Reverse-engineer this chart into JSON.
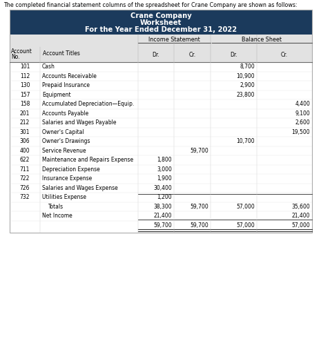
{
  "intro_text": "The completed financial statement columns of the spreadsheet for Crane Company are shown as follows:",
  "title_line1": "Crane Company",
  "title_line2": "Worksheet",
  "title_line3": "For the Year Ended December 31, 2022",
  "header_bg": "#1b3a5c",
  "header_text_color": "#ffffff",
  "subheader_bg": "#e2e2e2",
  "col_headers": [
    "Income Statement",
    "Balance Sheet"
  ],
  "rows": [
    {
      "no": "101",
      "title": "Cash",
      "is_dr": "",
      "is_cr": "",
      "bs_dr": "8,700",
      "bs_cr": ""
    },
    {
      "no": "112",
      "title": "Accounts Receivable",
      "is_dr": "",
      "is_cr": "",
      "bs_dr": "10,900",
      "bs_cr": ""
    },
    {
      "no": "130",
      "title": "Prepaid Insurance",
      "is_dr": "",
      "is_cr": "",
      "bs_dr": "2,900",
      "bs_cr": ""
    },
    {
      "no": "157",
      "title": "Equipment",
      "is_dr": "",
      "is_cr": "",
      "bs_dr": "23,800",
      "bs_cr": ""
    },
    {
      "no": "158",
      "title": "Accumulated Depreciation—Equip.",
      "is_dr": "",
      "is_cr": "",
      "bs_dr": "",
      "bs_cr": "4,400"
    },
    {
      "no": "201",
      "title": "Accounts Payable",
      "is_dr": "",
      "is_cr": "",
      "bs_dr": "",
      "bs_cr": "9,100"
    },
    {
      "no": "212",
      "title": "Salaries and Wages Payable",
      "is_dr": "",
      "is_cr": "",
      "bs_dr": "",
      "bs_cr": "2,600"
    },
    {
      "no": "301",
      "title": "Owner's Capital",
      "is_dr": "",
      "is_cr": "",
      "bs_dr": "",
      "bs_cr": "19,500"
    },
    {
      "no": "306",
      "title": "Owner's Drawings",
      "is_dr": "",
      "is_cr": "",
      "bs_dr": "10,700",
      "bs_cr": ""
    },
    {
      "no": "400",
      "title": "Service Revenue",
      "is_dr": "",
      "is_cr": "59,700",
      "bs_dr": "",
      "bs_cr": ""
    },
    {
      "no": "622",
      "title": "Maintenance and Repairs Expense",
      "is_dr": "1,800",
      "is_cr": "",
      "bs_dr": "",
      "bs_cr": ""
    },
    {
      "no": "711",
      "title": "Depreciation Expense",
      "is_dr": "3,000",
      "is_cr": "",
      "bs_dr": "",
      "bs_cr": ""
    },
    {
      "no": "722",
      "title": "Insurance Expense",
      "is_dr": "1,900",
      "is_cr": "",
      "bs_dr": "",
      "bs_cr": ""
    },
    {
      "no": "726",
      "title": "Salaries and Wages Expense",
      "is_dr": "30,400",
      "is_cr": "",
      "bs_dr": "",
      "bs_cr": ""
    },
    {
      "no": "732",
      "title": "Utilities Expense",
      "is_dr": "1,200",
      "is_cr": "",
      "bs_dr": "",
      "bs_cr": ""
    }
  ],
  "totals_label": "Totals",
  "totals": {
    "is_dr": "38,300",
    "is_cr": "59,700",
    "bs_dr": "57,000",
    "bs_cr": "35,600"
  },
  "ni_label": "Net Income",
  "ni": {
    "is_dr": "21,400",
    "is_cr": "",
    "bs_dr": "",
    "bs_cr": "21,400"
  },
  "final": {
    "is_dr": "59,700",
    "is_cr": "59,700",
    "bs_dr": "57,000",
    "bs_cr": "57,000"
  },
  "fs_intro": 5.8,
  "fs_title": 7.2,
  "fs_body": 5.8
}
